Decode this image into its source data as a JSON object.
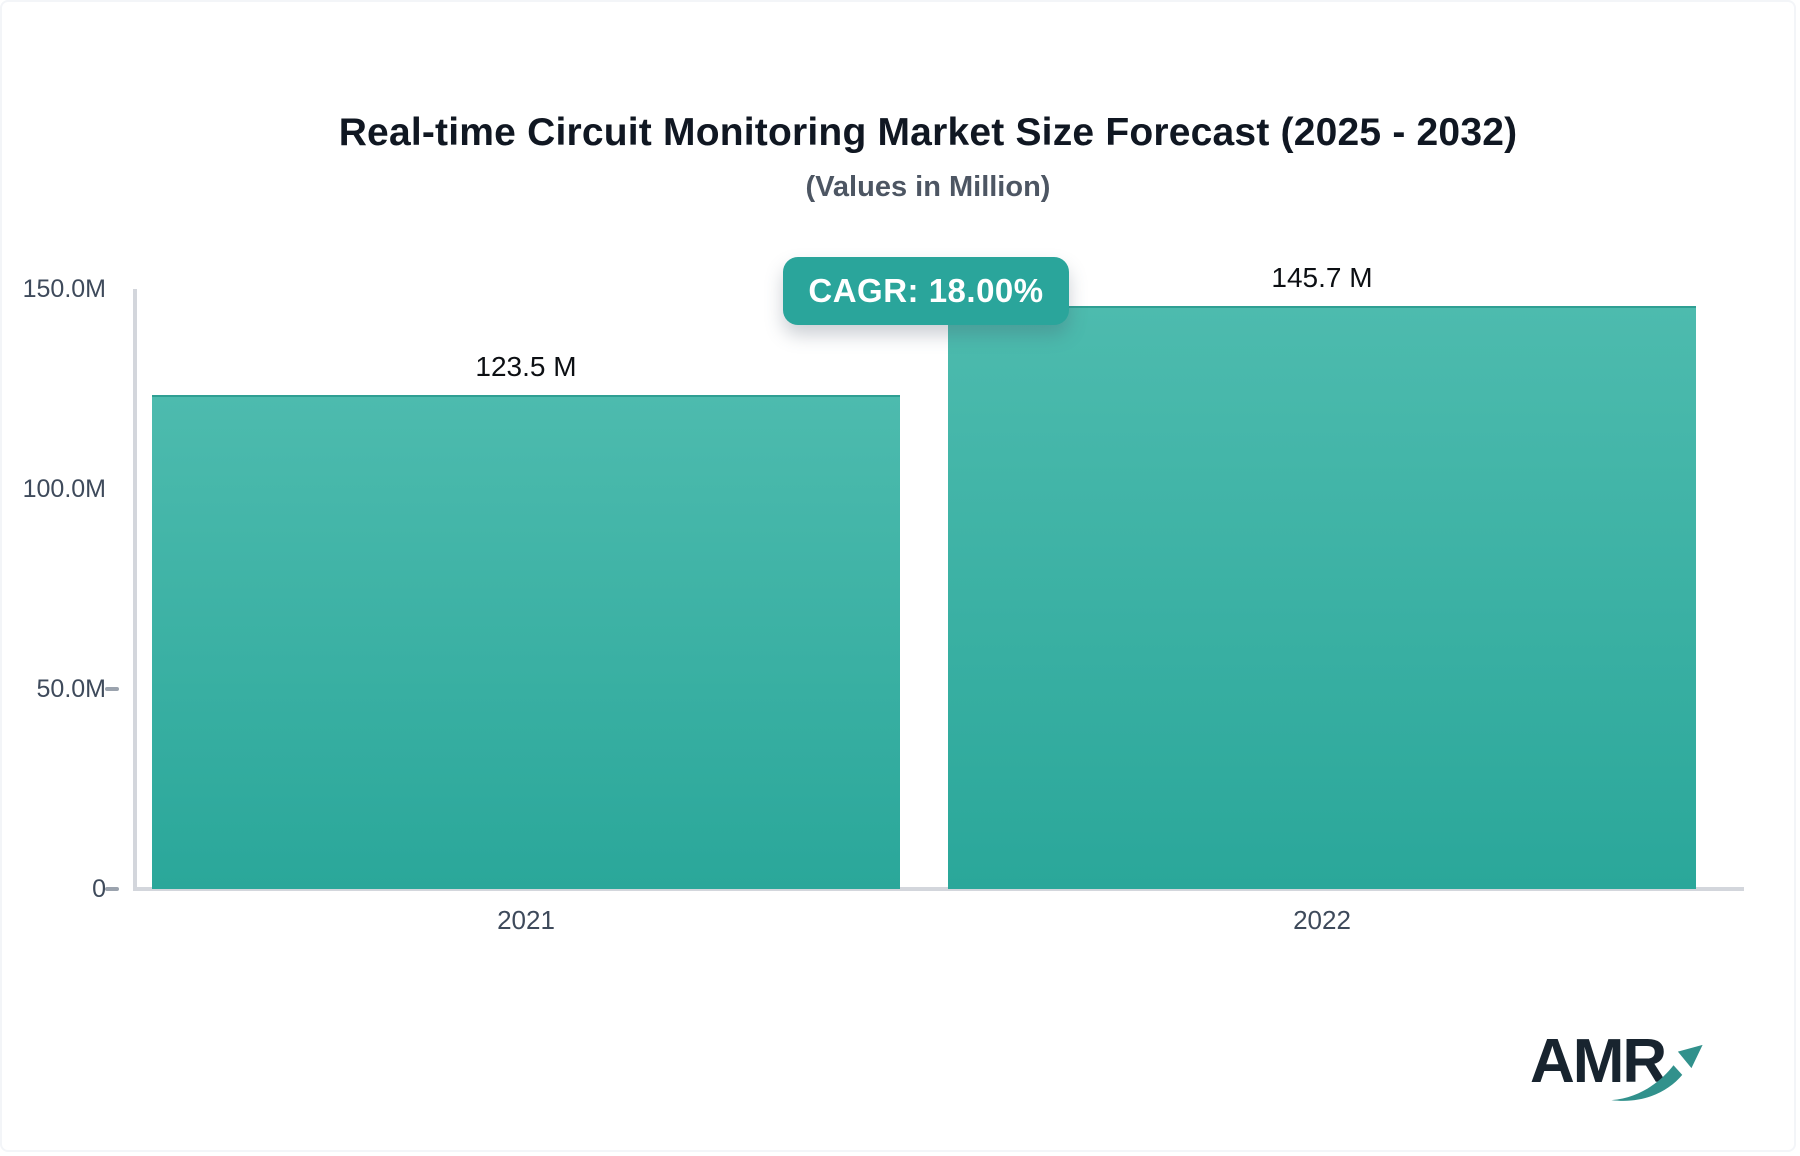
{
  "title": "Real-time Circuit Monitoring Market Size Forecast (2025 - 2032)",
  "subtitle": "(Values in Million)",
  "badge": {
    "label": "CAGR: 18.00%"
  },
  "logo": {
    "text": "AMR",
    "arrow_icon": "growth-arrow-icon"
  },
  "colors": {
    "bar_top": "#4dbbae",
    "bar_bottom": "#2aa79a",
    "badge": "#2aa59b",
    "axis": "#d3d6dc",
    "tick": "#3e4a5b",
    "title": "#101722",
    "subtitle": "#4d5663",
    "logo_text": "#18242f",
    "logo_arrow": "#31918c"
  },
  "chart_data": {
    "type": "bar",
    "title": "Real-time Circuit Monitoring Market Size Forecast (2025 - 2032)",
    "subtitle": "(Values in Million)",
    "unit": "Million",
    "categories": [
      "2021",
      "2022"
    ],
    "values": [
      123.5,
      145.7
    ],
    "value_labels": [
      "123.5 M",
      "145.7 M"
    ],
    "cagr_annotation": "CAGR: 18.00%",
    "xlabel": "",
    "ylabel": "",
    "ylim": [
      0,
      150
    ],
    "yticks": [
      "150.0M",
      "100.0M",
      "50.0M",
      "0"
    ],
    "grid": false,
    "legend": false,
    "bar_color": "teal-gradient"
  }
}
